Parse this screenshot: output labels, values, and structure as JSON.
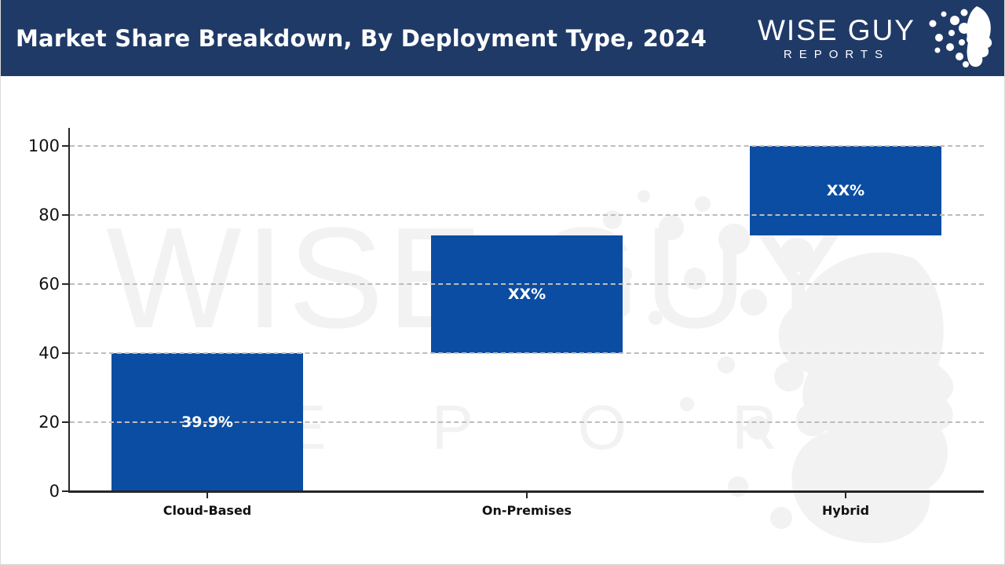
{
  "header": {
    "title": "Market Share Breakdown, By Deployment Type, 2024",
    "logo": {
      "line1": "WISE GUY",
      "line2": "REPORTS",
      "icon": "wiseguy-face-logo"
    }
  },
  "watermark": {
    "line1": "WISE GUY",
    "line2": "R E P O R T S",
    "icon": "watermark-face"
  },
  "chart_data": {
    "type": "bar",
    "subtype": "waterfall-range-bars",
    "title": "Market Share Breakdown, By Deployment Type, 2024",
    "categories": [
      "Cloud-Based",
      "On-Premises",
      "Hybrid"
    ],
    "segments": [
      {
        "category": "Cloud-Based",
        "start": 0,
        "end": 39.9,
        "label": "39.9%"
      },
      {
        "category": "On-Premises",
        "start": 39.9,
        "end": 74.1,
        "label": "XX%"
      },
      {
        "category": "Hybrid",
        "start": 74.1,
        "end": 100,
        "label": "XX%"
      }
    ],
    "yticks": [
      0,
      20,
      40,
      60,
      80,
      100
    ],
    "ylim": [
      0,
      105
    ],
    "xlabel": "",
    "ylabel": "",
    "grid": "horizontal-dashed",
    "legend": "none",
    "bar_color": "#0B4DA2",
    "bar_label_color": "#ffffff"
  },
  "colors": {
    "header_bg": "#1F3A67",
    "bar": "#0B4DA2",
    "grid": "#bdbdbd",
    "axis": "#262626",
    "watermark": "#f2f2f2"
  }
}
